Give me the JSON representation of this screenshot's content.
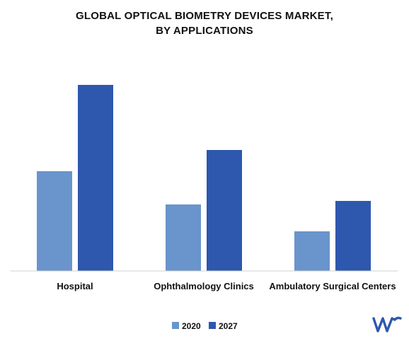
{
  "chart_data": {
    "type": "bar",
    "title_line1": "GLOBAL OPTICAL BIOMETRY DEVICES MARKET,",
    "title_line2": "BY APPLICATIONS",
    "categories": [
      "Hospital",
      "Ophthalmology Clinics",
      "Ambulatory Surgical Centers"
    ],
    "series": [
      {
        "name": "2020",
        "values": [
          141,
          94,
          56
        ],
        "color": "#6a94cc"
      },
      {
        "name": "2027",
        "values": [
          263,
          171,
          99
        ],
        "color": "#2e57ae"
      }
    ],
    "ylim": [
      0,
      300
    ],
    "grid": false,
    "legend_position": "bottom-center",
    "xlabel": "",
    "ylabel": ""
  },
  "logo": {
    "icon": "mrfr-logo-icon",
    "color": "#2e57ae"
  }
}
